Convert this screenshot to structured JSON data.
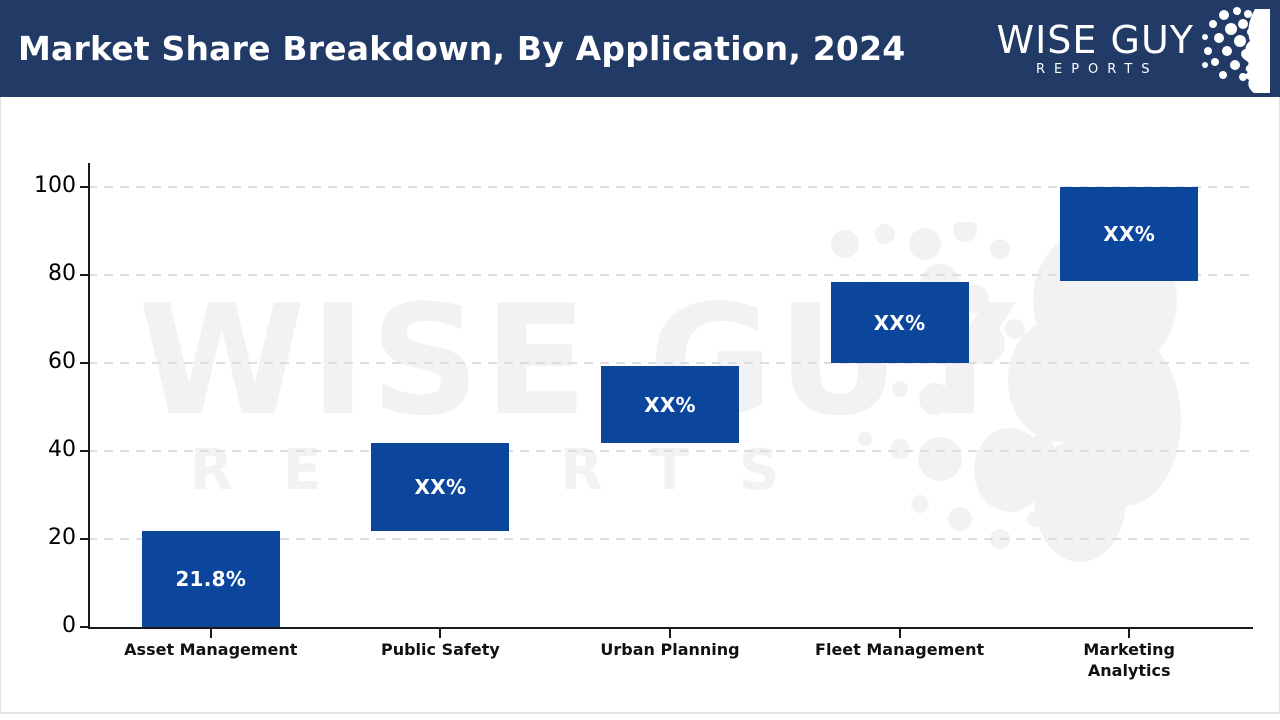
{
  "header": {
    "title": "Market Share Breakdown, By Application, 2024",
    "logo": {
      "line1": "WISE GUY",
      "line2": "REPORTS"
    }
  },
  "watermark": {
    "line1": "WISE GUY",
    "line2": "REPORTS"
  },
  "colors": {
    "header_bg": "#213a66",
    "bar_fill": "#0b459c",
    "bar_label": "#ffffff",
    "grid": "#dedede",
    "axis": "#1a1a1a",
    "watermark": "#f2f2f4",
    "title_text": "#ffffff"
  },
  "chart_data": {
    "type": "bar",
    "subtype": "waterfall",
    "title": "Market Share Breakdown, By Application, 2024",
    "xlabel": "",
    "ylabel": "",
    "ylim": [
      0,
      100
    ],
    "yticks": [
      0,
      20,
      40,
      60,
      80,
      100
    ],
    "grid": "horizontal-dashed",
    "legend": "none",
    "categories": [
      "Asset Management",
      "Public Safety",
      "Urban Planning",
      "Fleet Management",
      "Marketing\nAnalytics"
    ],
    "segments": [
      {
        "category": "Asset Management",
        "start": 0,
        "end": 21.8,
        "label": "21.8%"
      },
      {
        "category": "Public Safety",
        "start": 21.8,
        "end": 41.8,
        "label": "XX%"
      },
      {
        "category": "Urban Planning",
        "start": 41.8,
        "end": 59.3,
        "label": "XX%"
      },
      {
        "category": "Fleet Management",
        "start": 60.0,
        "end": 78.4,
        "label": "XX%"
      },
      {
        "category": "Marketing Analytics",
        "start": 78.6,
        "end": 100,
        "label": "XX%"
      }
    ]
  }
}
